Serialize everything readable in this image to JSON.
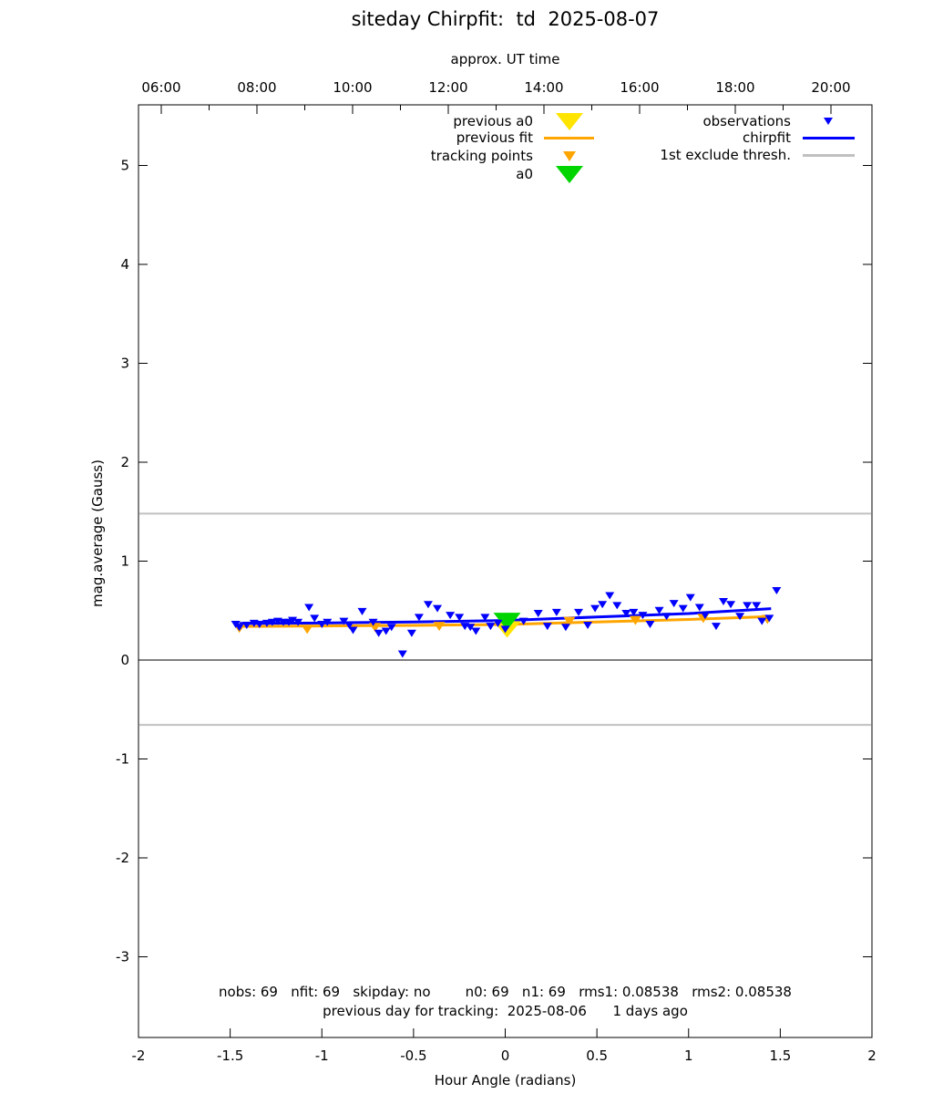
{
  "title": "siteday Chirpfit:  td  2025-08-07",
  "axes": {
    "top": {
      "label": "approx. UT time",
      "hours": [
        6,
        7,
        8,
        9,
        10,
        11,
        12,
        13,
        14,
        15,
        16,
        17,
        18,
        19,
        20
      ],
      "label_hours": [
        6,
        8,
        10,
        12,
        14,
        16,
        18,
        20
      ],
      "tick_labels": [
        "06:00",
        "08:00",
        "10:00",
        "12:00",
        "14:00",
        "16:00",
        "18:00",
        "20:00"
      ]
    },
    "bottom": {
      "label": "Hour Angle (radians)",
      "values": [
        -2,
        -1.5,
        -1,
        -0.5,
        0,
        0.5,
        1,
        1.5,
        2
      ],
      "tick_labels": [
        "-2",
        "-1.5",
        "-1",
        "-0.5",
        "0",
        "0.5",
        "1",
        "1.5",
        "2"
      ]
    },
    "left": {
      "label": "mag.average (Gauss)",
      "values": [
        5,
        4,
        3,
        2,
        1,
        0,
        -1,
        -2,
        -3
      ],
      "tick_labels": [
        "5",
        "4",
        "3",
        "2",
        "1",
        "0",
        "-1",
        "-2",
        "-3"
      ]
    }
  },
  "colors": {
    "blue": "#0000ff",
    "orange": "#ffa500",
    "yellow": "#ffe400",
    "green": "#00d500",
    "gray": "#c0c0c0",
    "black": "#000000"
  },
  "legend": {
    "left": [
      {
        "label": "previous a0",
        "marker": "big-triangle",
        "color": "#ffe400"
      },
      {
        "label": "previous fit",
        "marker": "line",
        "color": "#ffa500"
      },
      {
        "label": "tracking points",
        "marker": "small-triangle",
        "color": "#ffa500"
      },
      {
        "label": "a0",
        "marker": "big-triangle",
        "color": "#00d500"
      }
    ],
    "right": [
      {
        "label": "observations",
        "marker": "tiny-triangle",
        "color": "#0000ff"
      },
      {
        "label": "chirpfit",
        "marker": "line",
        "color": "#0000ff"
      },
      {
        "label": "1st exclude thresh.",
        "marker": "line",
        "color": "#c0c0c0"
      }
    ]
  },
  "stats": {
    "nobs": 69,
    "nfit": 69,
    "skipday": "no",
    "n0": 69,
    "n1": 69,
    "rms1": 0.08538,
    "rms2": 0.08538,
    "previous_day": "2025-08-06",
    "days_ago": "1 days ago",
    "line1": "nobs: 69   nfit: 69   skipday: no        n0: 69   n1: 69   rms1: 0.08538   rms2: 0.08538",
    "line2": "previous day for tracking:  2025-08-06      1 days ago"
  },
  "chart_data": {
    "type": "scatter",
    "title": "siteday Chirpfit:  td  2025-08-07",
    "xlabel": "Hour Angle (radians)",
    "x2label": "approx. UT time",
    "ylabel": "mag.average (Gauss)",
    "xlim": [
      -2,
      2
    ],
    "ylim": [
      -3.8,
      5.6
    ],
    "grid": false,
    "legend_position": "top-inside",
    "thresholds": {
      "name": "1st exclude thresh.",
      "color": "#c0c0c0",
      "values": [
        1.48,
        -0.655
      ]
    },
    "zero_line": {
      "color": "#000000",
      "value": 0
    },
    "series": [
      {
        "name": "previous fit",
        "type": "line",
        "color": "#ffa500",
        "points": [
          [
            -1.45,
            0.34
          ],
          [
            -1.0,
            0.345
          ],
          [
            -0.5,
            0.35
          ],
          [
            0,
            0.36
          ],
          [
            0.5,
            0.385
          ],
          [
            1.0,
            0.41
          ],
          [
            1.45,
            0.44
          ]
        ]
      },
      {
        "name": "chirpfit",
        "type": "line",
        "color": "#0000ff",
        "points": [
          [
            -1.45,
            0.37
          ],
          [
            -1.0,
            0.375
          ],
          [
            -0.5,
            0.385
          ],
          [
            0,
            0.4
          ],
          [
            0.5,
            0.435
          ],
          [
            1.0,
            0.47
          ],
          [
            1.45,
            0.52
          ]
        ]
      },
      {
        "name": "tracking points",
        "type": "scatter",
        "marker": "triangle-down",
        "color": "#ffa500",
        "points": [
          [
            -1.45,
            0.32
          ],
          [
            -1.08,
            0.31
          ],
          [
            -0.71,
            0.33
          ],
          [
            -0.36,
            0.34
          ],
          [
            0.35,
            0.39
          ],
          [
            0.71,
            0.4
          ],
          [
            1.08,
            0.42
          ],
          [
            1.43,
            0.41
          ]
        ]
      },
      {
        "name": "previous a0",
        "type": "scatter",
        "marker": "triangle-down",
        "color": "#ffe400",
        "points": [
          [
            0.01,
            0.31
          ]
        ]
      },
      {
        "name": "a0",
        "type": "scatter",
        "marker": "triangle-down",
        "color": "#00d500",
        "points": [
          [
            0.01,
            0.39
          ]
        ]
      },
      {
        "name": "observations",
        "type": "scatter",
        "marker": "triangle-down",
        "color": "#0000ff",
        "points": [
          [
            -1.47,
            0.36
          ],
          [
            -1.45,
            0.33
          ],
          [
            -1.41,
            0.35
          ],
          [
            -1.37,
            0.37
          ],
          [
            -1.34,
            0.36
          ],
          [
            -1.3,
            0.37
          ],
          [
            -1.27,
            0.38
          ],
          [
            -1.24,
            0.39
          ],
          [
            -1.21,
            0.38
          ],
          [
            -1.18,
            0.38
          ],
          [
            -1.16,
            0.4
          ],
          [
            -1.13,
            0.38
          ],
          [
            -1.07,
            0.53
          ],
          [
            -1.04,
            0.42
          ],
          [
            -1.0,
            0.36
          ],
          [
            -0.97,
            0.38
          ],
          [
            -0.88,
            0.39
          ],
          [
            -0.85,
            0.35
          ],
          [
            -0.83,
            0.3
          ],
          [
            -0.78,
            0.49
          ],
          [
            -0.72,
            0.38
          ],
          [
            -0.69,
            0.27
          ],
          [
            -0.65,
            0.29
          ],
          [
            -0.62,
            0.33
          ],
          [
            -0.56,
            0.06
          ],
          [
            -0.51,
            0.27
          ],
          [
            -0.47,
            0.43
          ],
          [
            -0.42,
            0.56
          ],
          [
            -0.37,
            0.52
          ],
          [
            -0.3,
            0.45
          ],
          [
            -0.25,
            0.43
          ],
          [
            -0.22,
            0.34
          ],
          [
            -0.19,
            0.33
          ],
          [
            -0.16,
            0.29
          ],
          [
            -0.11,
            0.43
          ],
          [
            -0.08,
            0.34
          ],
          [
            -0.04,
            0.37
          ],
          [
            0.0,
            0.31
          ],
          [
            0.1,
            0.39
          ],
          [
            0.18,
            0.47
          ],
          [
            0.23,
            0.34
          ],
          [
            0.28,
            0.48
          ],
          [
            0.33,
            0.33
          ],
          [
            0.4,
            0.48
          ],
          [
            0.45,
            0.35
          ],
          [
            0.49,
            0.52
          ],
          [
            0.53,
            0.56
          ],
          [
            0.57,
            0.65
          ],
          [
            0.61,
            0.55
          ],
          [
            0.66,
            0.47
          ],
          [
            0.7,
            0.48
          ],
          [
            0.75,
            0.45
          ],
          [
            0.79,
            0.36
          ],
          [
            0.84,
            0.5
          ],
          [
            0.88,
            0.44
          ],
          [
            0.92,
            0.57
          ],
          [
            0.97,
            0.52
          ],
          [
            1.01,
            0.63
          ],
          [
            1.06,
            0.53
          ],
          [
            1.09,
            0.45
          ],
          [
            1.15,
            0.34
          ],
          [
            1.19,
            0.59
          ],
          [
            1.23,
            0.56
          ],
          [
            1.28,
            0.44
          ],
          [
            1.32,
            0.55
          ],
          [
            1.37,
            0.55
          ],
          [
            1.4,
            0.39
          ],
          [
            1.44,
            0.42
          ],
          [
            1.48,
            0.7
          ]
        ]
      }
    ]
  }
}
